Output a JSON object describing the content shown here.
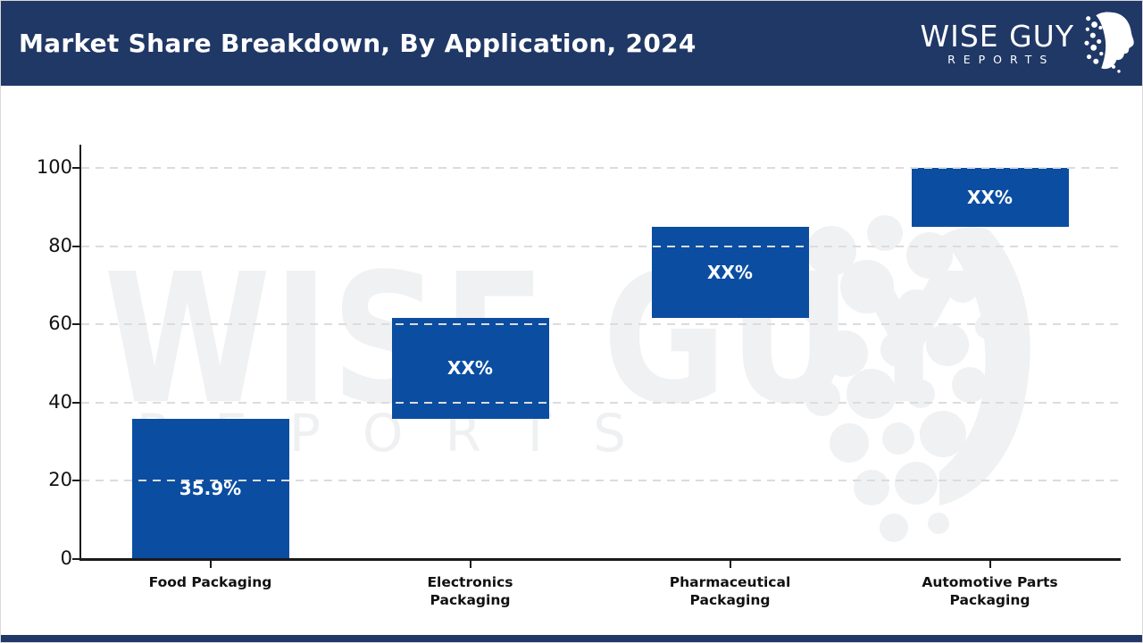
{
  "header": {
    "title": "Market Share Breakdown, By Application, 2024",
    "logo": {
      "line1": "WISE GUY",
      "line2": "REPORTS"
    }
  },
  "watermark": {
    "line1": "WISE GUY",
    "line2": "REPORTS"
  },
  "colors": {
    "header_bg": "#203866",
    "footer_bg": "#203866",
    "bar": "#0b4da1",
    "bar_label": "#ffffff",
    "grid": "#dcdcdc",
    "axis": "#1a1a1a",
    "watermark": "#f0f1f3"
  },
  "chart_data": {
    "type": "bar",
    "subtype": "floating-waterfall",
    "title": "Market Share Breakdown, By Application, 2024",
    "categories": [
      "Food Packaging",
      "Electronics\nPackaging",
      "Pharmaceutical\nPackaging",
      "Automotive Parts\nPackaging"
    ],
    "segments": [
      {
        "category": "Food Packaging",
        "start": 0,
        "end": 35.9,
        "label": "35.9%"
      },
      {
        "category": "Electronics Packaging",
        "start": 35.9,
        "end": 61.6,
        "label": "XX%"
      },
      {
        "category": "Pharmaceutical Packaging",
        "start": 61.6,
        "end": 84.9,
        "label": "XX%"
      },
      {
        "category": "Automotive Parts Packaging",
        "start": 84.9,
        "end": 100,
        "label": "XX%"
      }
    ],
    "y_ticks": [
      0,
      20,
      40,
      60,
      80,
      100
    ],
    "ylim": [
      0,
      105
    ],
    "xlabel": "",
    "ylabel": "",
    "grid": "horizontal-dashed-over-bars",
    "legend": "none"
  }
}
